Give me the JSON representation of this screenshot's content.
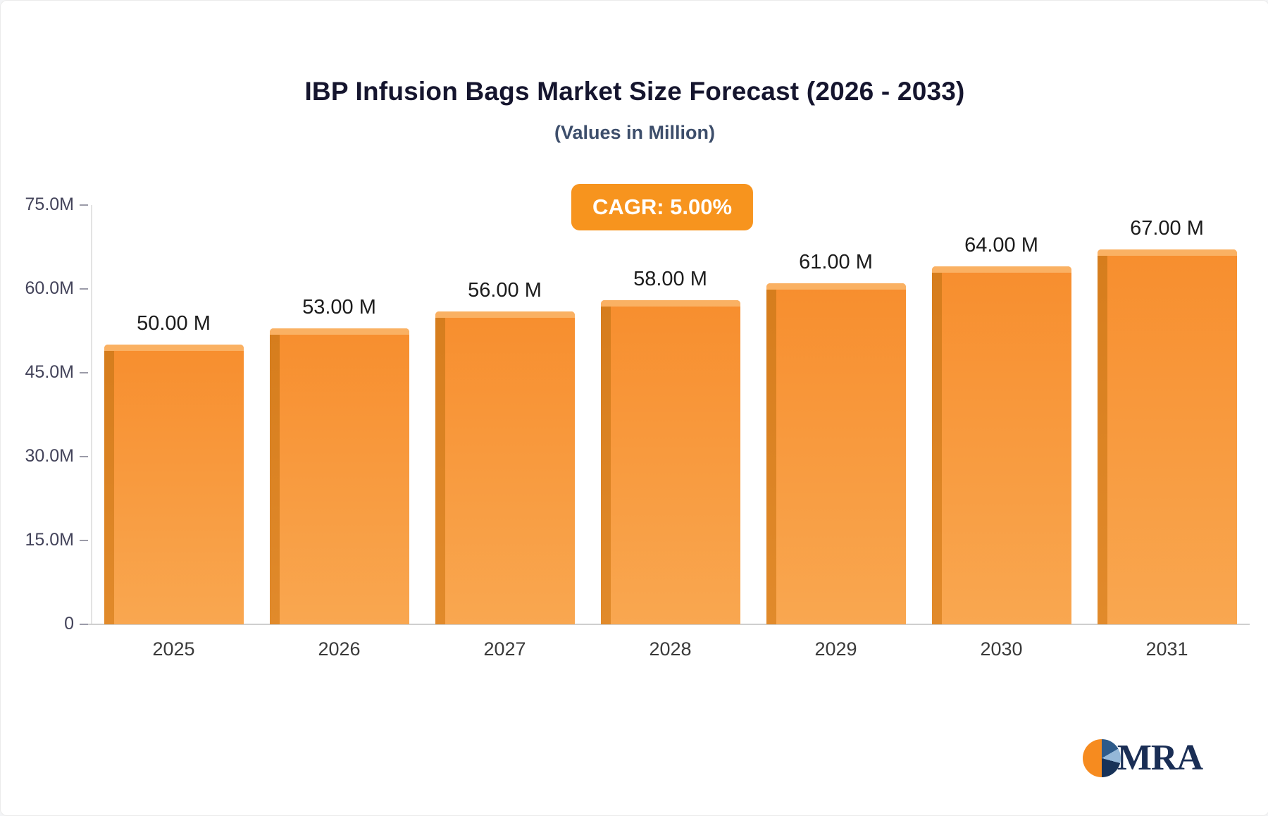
{
  "title": "IBP Infusion Bags Market Size Forecast (2026 - 2033)",
  "subtitle": "(Values in Million)",
  "badge": {
    "label": "CAGR: 5.00%"
  },
  "logo": {
    "text": "MRA",
    "icon": "pie-circle-icon"
  },
  "colors": {
    "badge_bg": "#f7941e",
    "bar_main": "#f79338",
    "bar_side": "#d67d1d",
    "bar_top": "#fab163",
    "title_text": "#15152e",
    "subtitle_text": "#3d4e6b",
    "logo_text": "#1a2e55"
  },
  "chart_data": {
    "type": "bar",
    "title": "IBP Infusion Bags Market Size Forecast (2026 - 2033)",
    "subtitle": "(Values in Million)",
    "categories": [
      "2025",
      "2026",
      "2027",
      "2028",
      "2029",
      "2030",
      "2031"
    ],
    "values": [
      50,
      53,
      56,
      58,
      61,
      64,
      67
    ],
    "value_labels": [
      "50.00 M",
      "53.00 M",
      "56.00 M",
      "58.00 M",
      "61.00 M",
      "64.00 M",
      "67.00 M"
    ],
    "xlabel": "",
    "ylabel": "",
    "ylim": [
      0,
      75
    ],
    "yticks": [
      0,
      15,
      30,
      45,
      60,
      75
    ],
    "ytick_labels": [
      "0",
      "15.0M",
      "30.0M",
      "45.0M",
      "60.0M",
      "75.0M"
    ],
    "grid": false,
    "legend": false,
    "annotation": "CAGR: 5.00%"
  }
}
